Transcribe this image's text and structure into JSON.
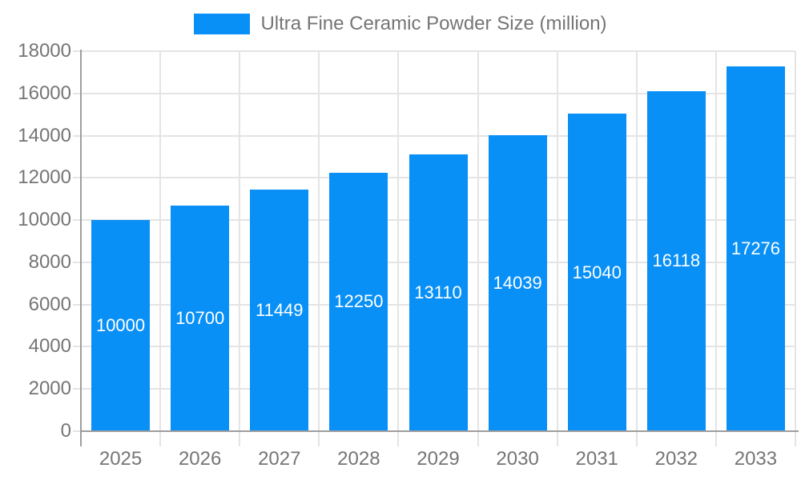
{
  "legend": {
    "label": "Ultra Fine Ceramic Powder Size (million)"
  },
  "chart_data": {
    "type": "bar",
    "title": "",
    "series_name": "Ultra Fine Ceramic Powder Size (million)",
    "categories": [
      "2025",
      "2026",
      "2027",
      "2028",
      "2029",
      "2030",
      "2031",
      "2032",
      "2033"
    ],
    "values": [
      10000,
      10700,
      11449,
      12250,
      13110,
      14039,
      15040,
      16118,
      17276
    ],
    "bar_labels": [
      "10000",
      "10700",
      "11449",
      "12250",
      "13110",
      "14039",
      "15040",
      "16118",
      "17276"
    ],
    "y_ticks": [
      0,
      2000,
      4000,
      6000,
      8000,
      10000,
      12000,
      14000,
      16000,
      18000
    ],
    "ylim": [
      0,
      18000
    ],
    "xlabel": "",
    "ylabel": "",
    "grid": true,
    "legend_position": "top",
    "bar_label_position": "inside-middle",
    "colors": {
      "bar": "#0990F7",
      "grid": "#e4e4e4",
      "axis": "#9e9e9e",
      "text": "#757575",
      "bar_label": "#ffffff",
      "background": "#ffffff"
    }
  }
}
